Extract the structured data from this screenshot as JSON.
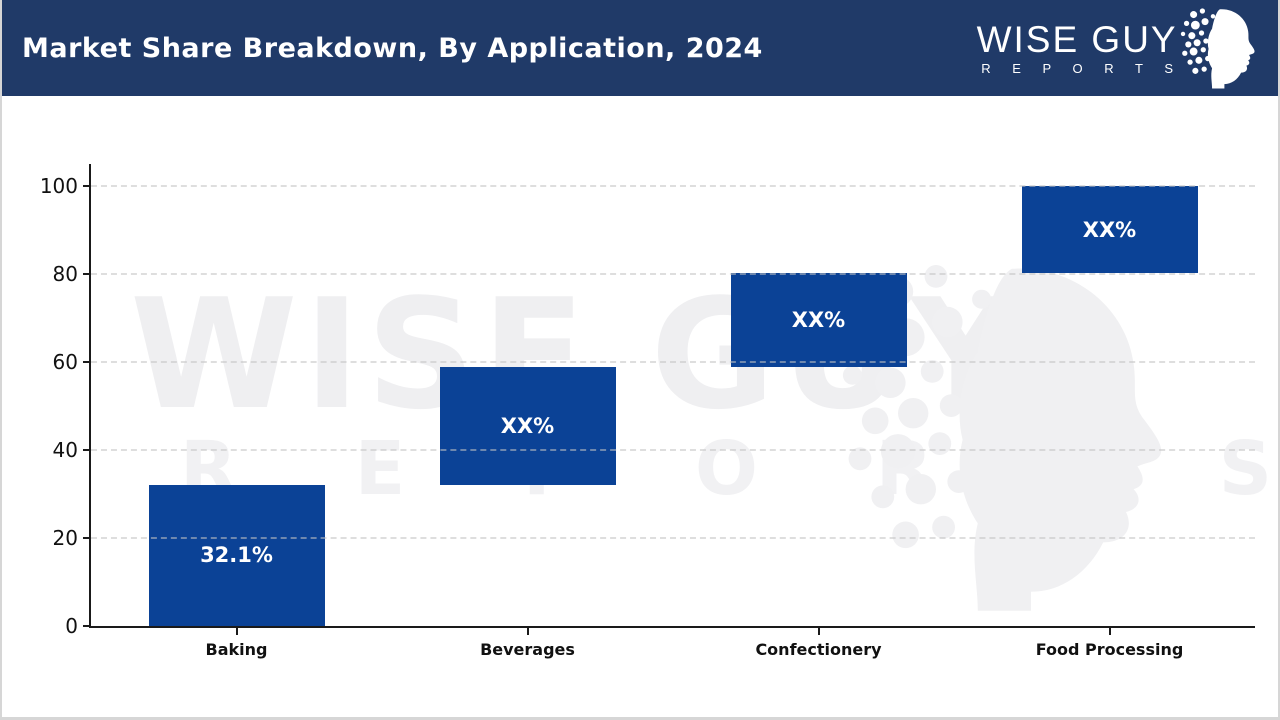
{
  "header": {
    "title": "Market Share Breakdown, By Application, 2024",
    "logo": {
      "line1": "WISE GUY",
      "line2": "R E P O R T S"
    }
  },
  "watermark": {
    "line1": "WISE GUY",
    "line2": "R E P O R T S"
  },
  "colors": {
    "header_bg": "#203a68",
    "bar": "#0b4296",
    "bar_label": "#ffffff",
    "axis": "#1a1a1a",
    "grid_dash": "#d9d9d9",
    "watermark": "#f0f0f2"
  },
  "chart_data": {
    "type": "bar",
    "variant": "waterfall",
    "title": "Market Share Breakdown, By Application, 2024",
    "categories": [
      "Baking",
      "Beverages",
      "Confectionery",
      "Food Processing"
    ],
    "bars": [
      {
        "category": "Baking",
        "start": 0,
        "end": 32.1,
        "value_label": "32.1%"
      },
      {
        "category": "Beverages",
        "start": 32.1,
        "end": 58.9,
        "value_label": "XX%"
      },
      {
        "category": "Confectionery",
        "start": 58.9,
        "end": 80.2,
        "value_label": "XX%"
      },
      {
        "category": "Food Processing",
        "start": 80.2,
        "end": 100,
        "value_label": "XX%"
      }
    ],
    "xlabel": "",
    "ylabel": "",
    "yticks": [
      0,
      20,
      40,
      60,
      80,
      100
    ],
    "ylim": [
      0,
      105
    ],
    "grid": "horizontal-dashed",
    "legend": "none"
  }
}
